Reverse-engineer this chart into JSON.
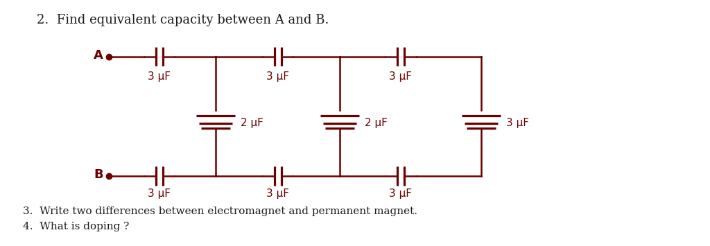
{
  "title": "2.  Find equivalent capacity between A and B.",
  "title_fontsize": 13,
  "bg_color": "#ffffff",
  "line_color": "#6B0000",
  "text_color": "#1a1a1a",
  "label_fontsize": 11,
  "footer_text_1": "3.  Write two differences between electromagnet and permanent magnet.",
  "footer_text_2": "4.  What is doping ?",
  "top_cap_labels": [
    "3 μF",
    "3 μF",
    "3 μF"
  ],
  "bottom_cap_labels": [
    "3 μF",
    "3 μF",
    "3 μF"
  ],
  "vert_cap_labels": [
    "2 μF",
    "2 μF",
    "3 μF"
  ]
}
